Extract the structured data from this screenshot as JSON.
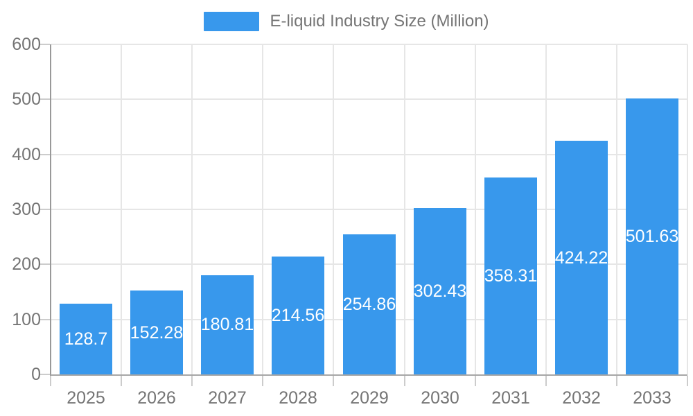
{
  "legend": {
    "label": "E-liquid Industry Size (Million)",
    "swatch_color": "#3898EC"
  },
  "chart_data": {
    "type": "bar",
    "title": "E-liquid Industry Size (Million)",
    "series_name": "E-liquid Industry Size (Million)",
    "categories": [
      "2025",
      "2026",
      "2027",
      "2028",
      "2029",
      "2030",
      "2031",
      "2032",
      "2033"
    ],
    "values": [
      128.7,
      152.28,
      180.81,
      214.56,
      254.86,
      302.43,
      358.31,
      424.22,
      501.63
    ],
    "bar_labels": [
      "128.7",
      "152.28",
      "180.81",
      "214.56",
      "254.86",
      "302.43",
      "358.31",
      "424.22",
      "501.63"
    ],
    "xlabel": "",
    "ylabel": "",
    "ylim": [
      0,
      600
    ],
    "yticks": [
      0,
      100,
      200,
      300,
      400,
      500,
      600
    ],
    "grid": true,
    "legend_position": "top-center",
    "colors": {
      "bar": "#3898EC",
      "bar_label_text": "#FFFFFF",
      "axis_text": "#757575",
      "gridline": "#E6E6E6",
      "axis_line": "#999999",
      "tick": "#CCCCCC",
      "background": "#FFFFFF"
    }
  }
}
